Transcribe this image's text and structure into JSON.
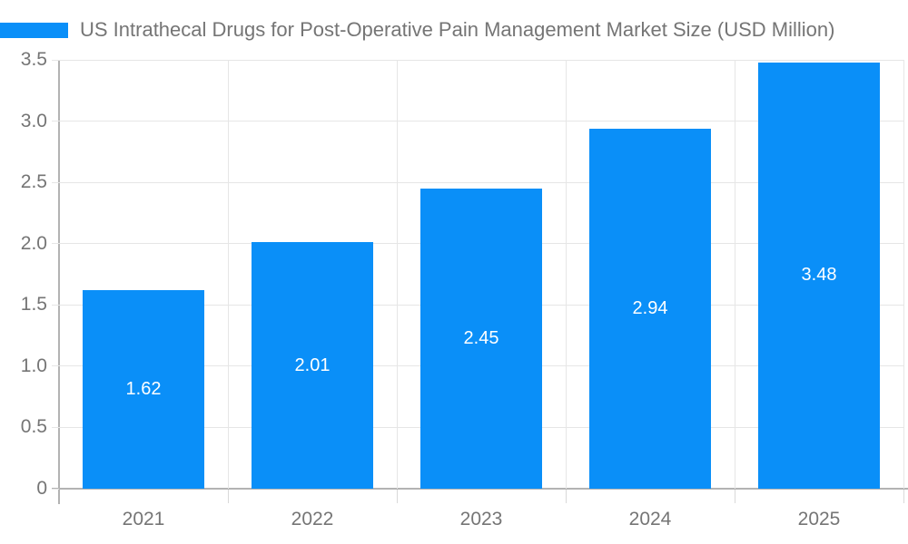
{
  "chart_data": {
    "type": "bar",
    "title": "US Intrathecal Drugs for Post-Operative Pain Management Market Size (USD Million)",
    "categories": [
      "2021",
      "2022",
      "2023",
      "2024",
      "2025"
    ],
    "values": [
      1.62,
      2.01,
      2.45,
      2.94,
      3.48
    ],
    "value_labels": [
      "1.62",
      "2.01",
      "2.45",
      "2.94",
      "3.48"
    ],
    "xlabel": "",
    "ylabel": "",
    "ylim": [
      0,
      3.5
    ],
    "yticks": [
      {
        "value": 0,
        "label": "0"
      },
      {
        "value": 0.5,
        "label": "0.5"
      },
      {
        "value": 1.0,
        "label": "1.0"
      },
      {
        "value": 1.5,
        "label": "1.5"
      },
      {
        "value": 2.0,
        "label": "2.0"
      },
      {
        "value": 2.5,
        "label": "2.5"
      },
      {
        "value": 3.0,
        "label": "3.0"
      },
      {
        "value": 3.5,
        "label": "3.5"
      }
    ],
    "grid": true,
    "legend_position": "top-left",
    "colors": {
      "bar": "#0a8ff8",
      "title_text": "#757575",
      "axis_text": "#757575",
      "gridline": "#e6e6e6",
      "axis_line": "#b3b3b3",
      "tick": "#d9d9d9",
      "value_text": "#ffffff"
    }
  }
}
